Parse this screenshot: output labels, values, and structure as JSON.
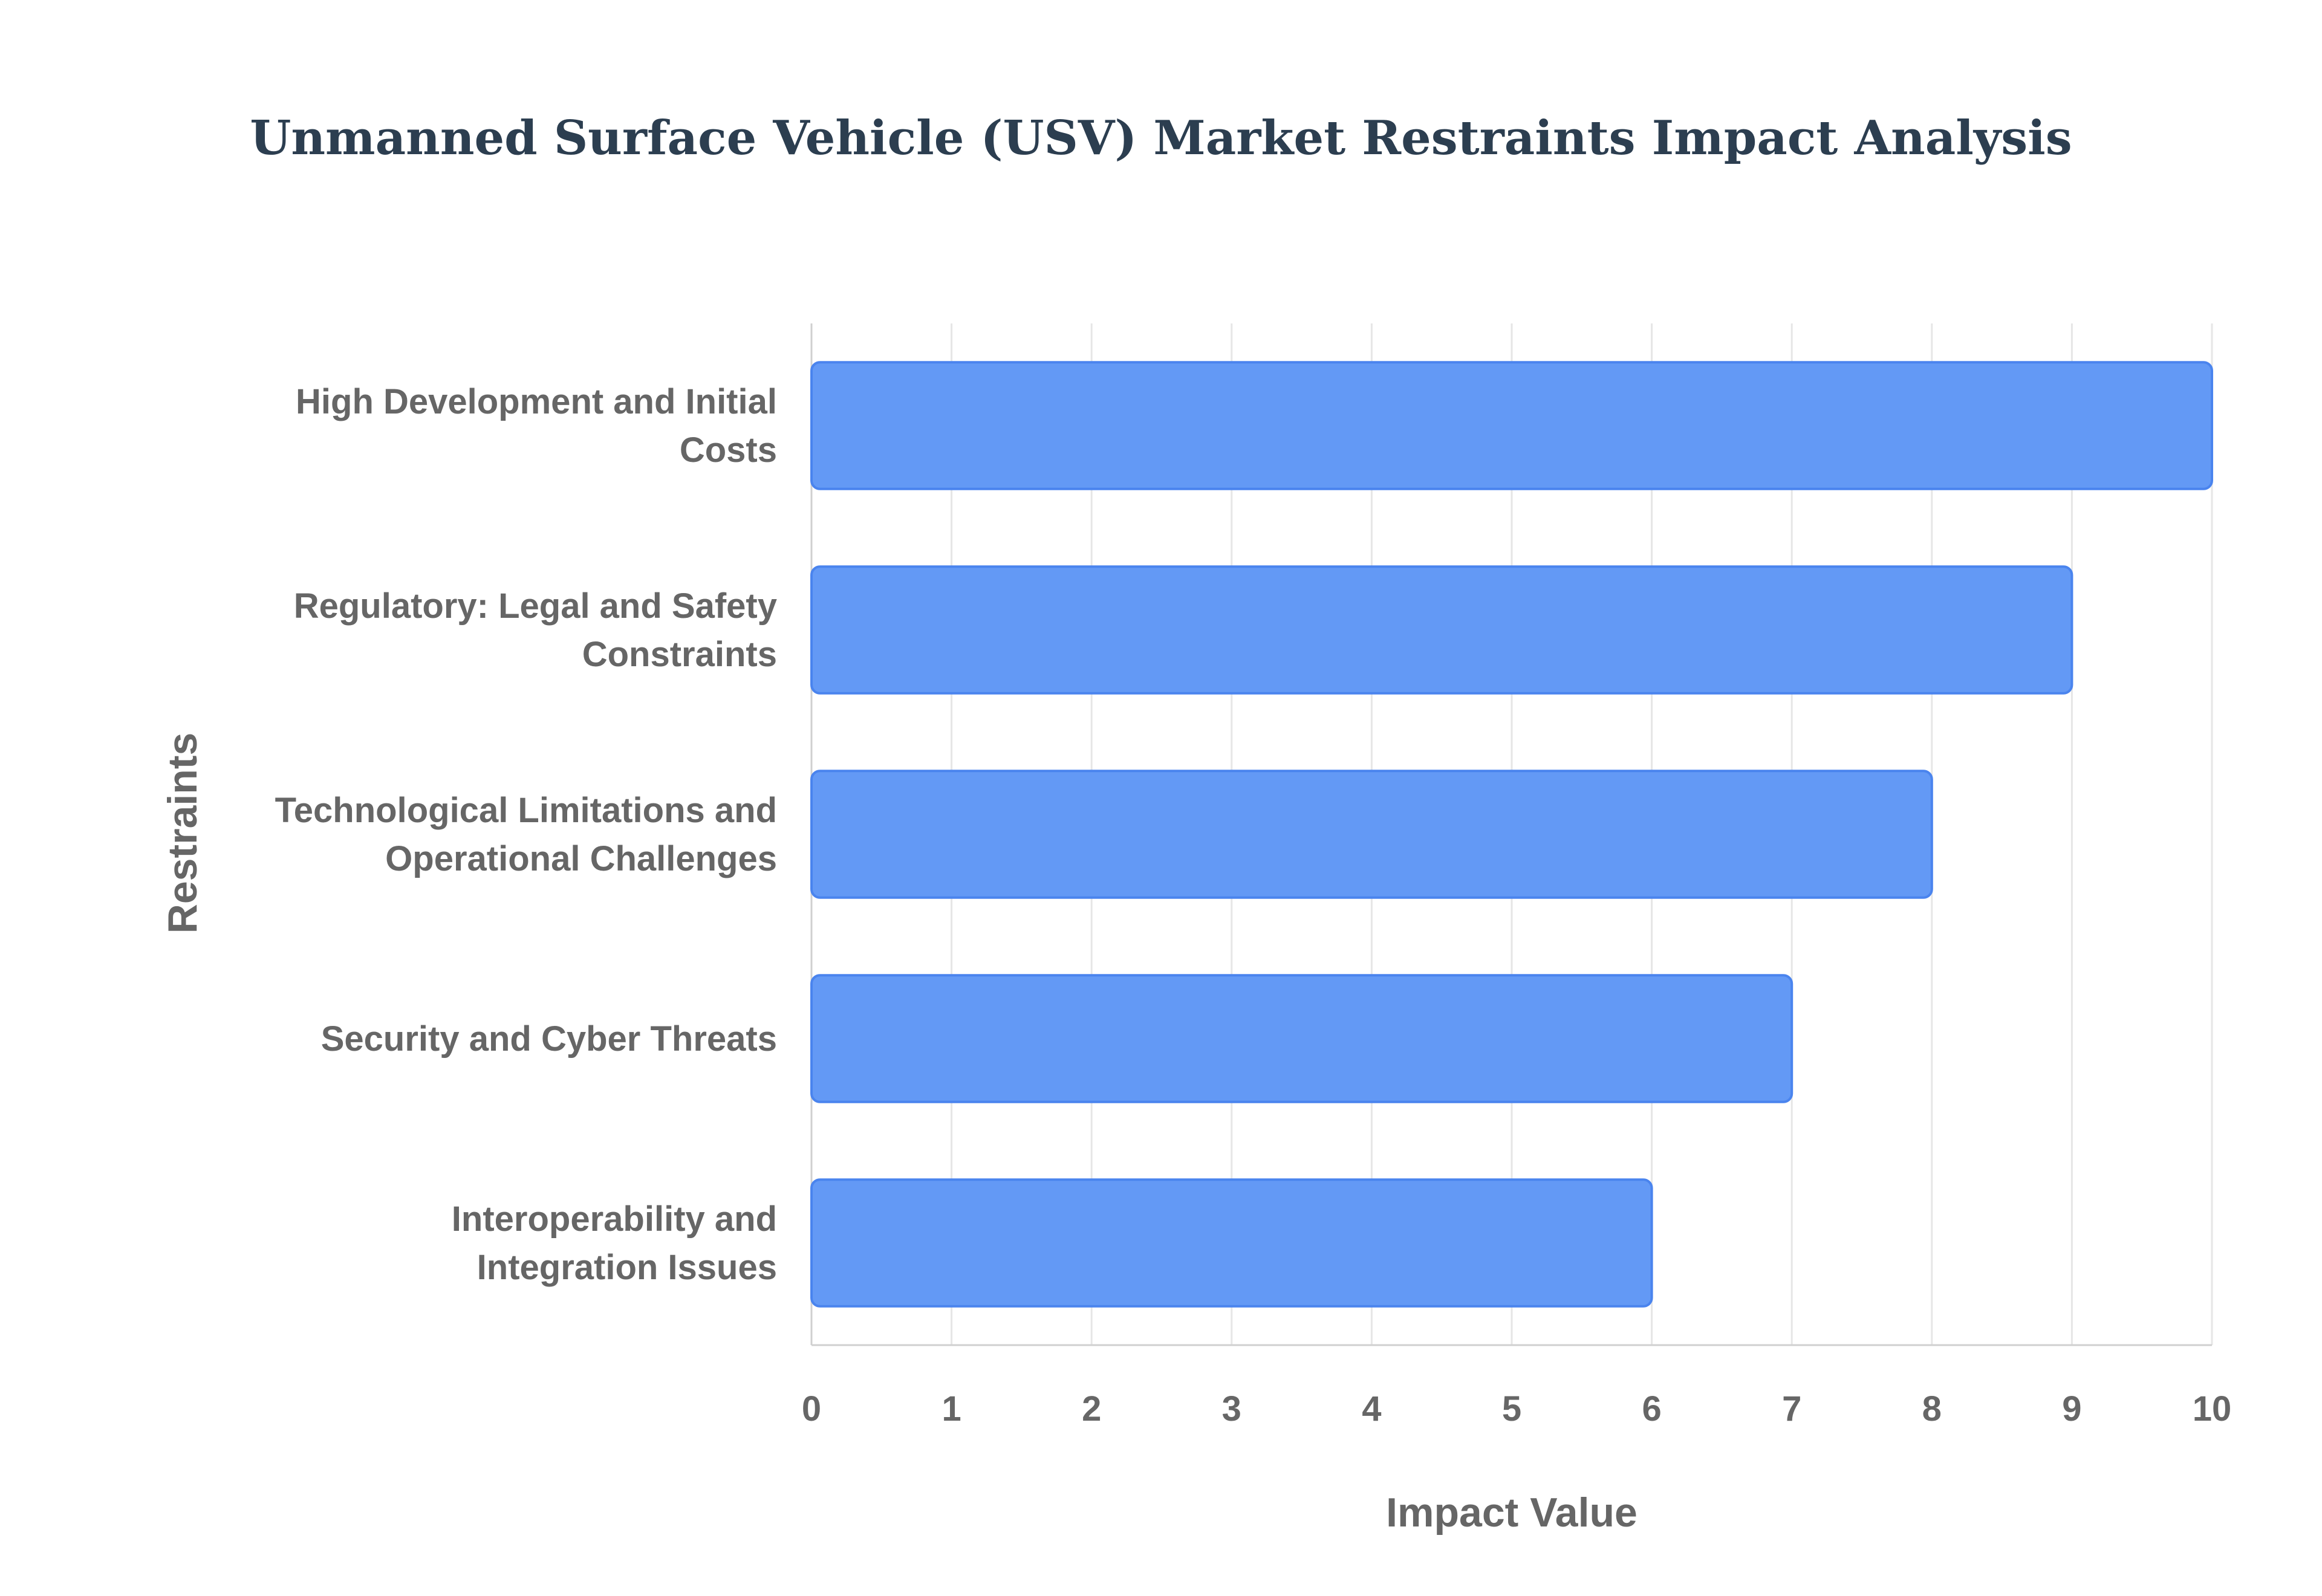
{
  "chart_data": {
    "type": "bar",
    "orientation": "horizontal",
    "title": "Unmanned Surface Vehicle (USV) Market Restraints Impact Analysis",
    "xlabel": "Impact Value",
    "ylabel": "Restraints",
    "categories": [
      [
        "High Development and Initial",
        "Costs"
      ],
      [
        "Regulatory: Legal and Safety",
        "Constraints"
      ],
      [
        "Technological Limitations and",
        "Operational Challenges"
      ],
      [
        "Security and Cyber Threats"
      ],
      [
        "Interoperability and",
        "Integration Issues"
      ]
    ],
    "values": [
      10,
      9,
      8,
      7,
      6
    ],
    "xlim": [
      0,
      10
    ],
    "xticks": [
      "0",
      "1",
      "2",
      "3",
      "4",
      "5",
      "6",
      "7",
      "8",
      "9",
      "10"
    ],
    "grid": true,
    "legend": "none",
    "bar_color": "#6399f5",
    "bar_edge_color": "#4a84ee"
  }
}
